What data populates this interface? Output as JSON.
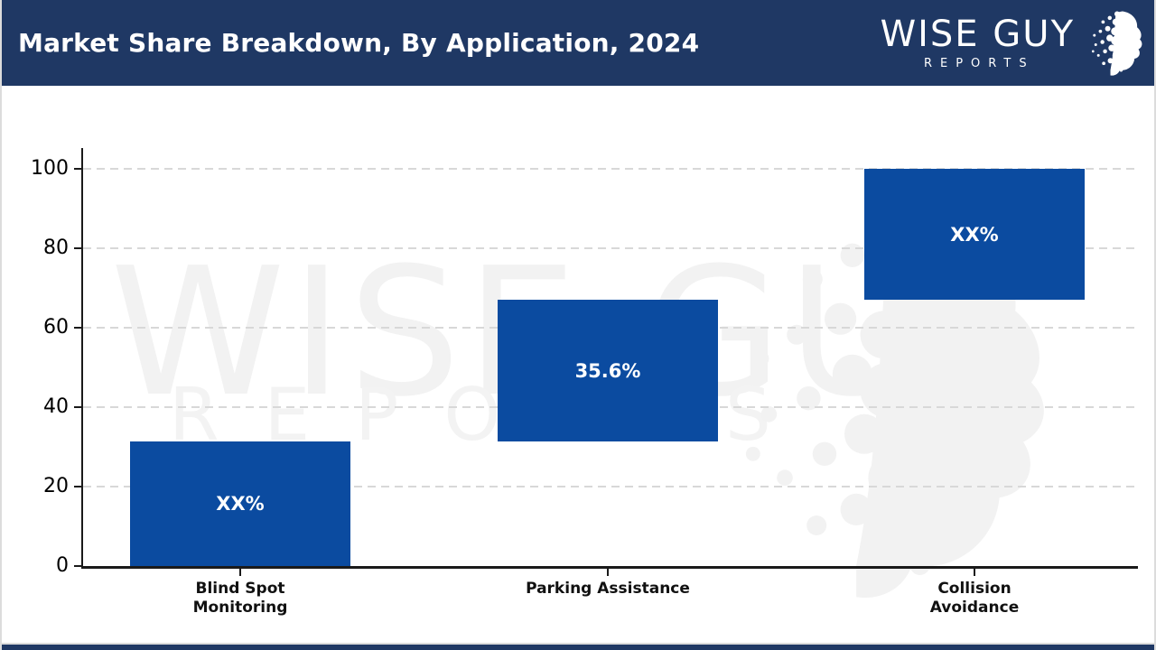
{
  "header": {
    "title": "Market Share Breakdown, By Application, 2024",
    "logo_line1": "WISE GUY",
    "logo_line2": "REPORTS"
  },
  "watermark": {
    "line1": "WISE GUY",
    "line2": "REPORTS"
  },
  "colors": {
    "header_bg": "#1f3864",
    "footer_bg": "#1f3864",
    "bar": "#0b4ba0",
    "axis": "#1a1a1a",
    "grid": "#d8d8d8",
    "watermark": "#f2f2f2"
  },
  "chart_data": {
    "type": "bar",
    "subtype": "waterfall",
    "title": "Market Share Breakdown, By Application, 2024",
    "categories": [
      "Blind Spot Monitoring",
      "Parking Assistance",
      "Collision Avoidance"
    ],
    "category_labels_multiline": [
      [
        "Blind Spot",
        "Monitoring"
      ],
      [
        "Parking Assistance"
      ],
      [
        "Collision",
        "Avoidance"
      ]
    ],
    "segments": [
      {
        "category": "Blind Spot Monitoring",
        "label": "XX%",
        "start": 0,
        "end": 31.4
      },
      {
        "category": "Parking Assistance",
        "label": "35.6%",
        "start": 31.4,
        "end": 67
      },
      {
        "category": "Collision Avoidance",
        "label": "XX%",
        "start": 67,
        "end": 100
      }
    ],
    "xlabel": "",
    "ylabel": "",
    "ylim": [
      0,
      100
    ],
    "yticks": [
      0,
      20,
      40,
      60,
      80,
      100
    ],
    "grid": "horizontal-dashed",
    "legend": false,
    "bar_color": "#0b4ba0"
  }
}
